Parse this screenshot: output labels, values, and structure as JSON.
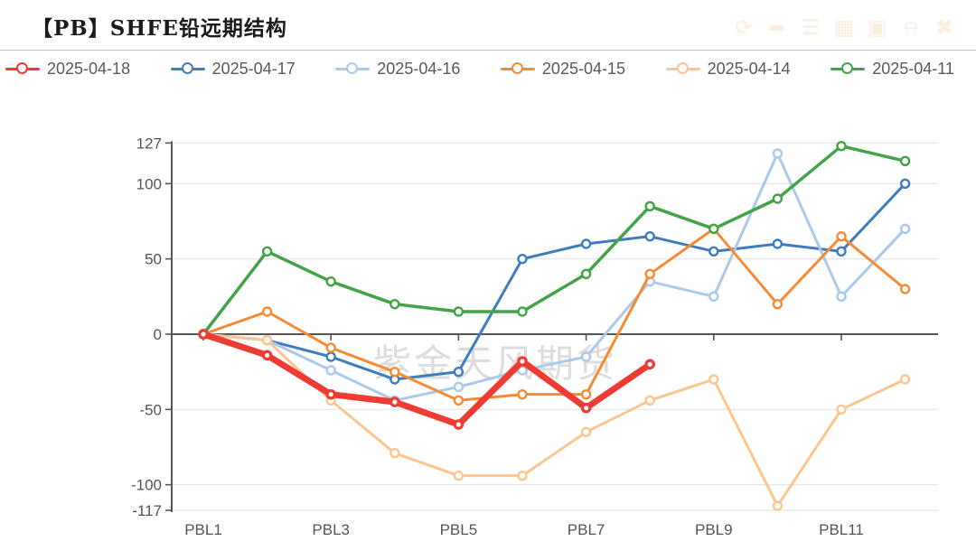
{
  "header": {
    "title": "【PB】SHFE铅远期结构"
  },
  "toolbar_icons": [
    {
      "name": "refresh-icon",
      "glyph": "⟳"
    },
    {
      "name": "share-icon",
      "glyph": "➦"
    },
    {
      "name": "list-icon",
      "glyph": "☰"
    },
    {
      "name": "table-icon",
      "glyph": "▦"
    },
    {
      "name": "image-icon",
      "glyph": "▣"
    },
    {
      "name": "bell-icon",
      "glyph": "⍾"
    },
    {
      "name": "close-icon",
      "glyph": "✖"
    }
  ],
  "watermark": "紫金天风期货",
  "colors": {
    "axis": "#555555",
    "grid": "#e4e4e4",
    "tick_label": "#555555",
    "legend_label": "#595959",
    "watermark": "#c3c3c3"
  },
  "chart_data": {
    "type": "line",
    "title": "【PB】SHFE铅远期结构",
    "categories": [
      "PBL1",
      "PBL2",
      "PBL3",
      "PBL4",
      "PBL5",
      "PBL6",
      "PBL7",
      "PBL8",
      "PBL9",
      "PBL10",
      "PBL11",
      "PBL12"
    ],
    "x_tick_labels": [
      "PBL1",
      "PBL3",
      "PBL5",
      "PBL7",
      "PBL9",
      "PBL11"
    ],
    "yticks": [
      127,
      100,
      50,
      0,
      -50,
      -100,
      -117
    ],
    "ylim": [
      -117,
      127
    ],
    "grid": true,
    "legend_position": "top",
    "series": [
      {
        "name": "2025-04-18",
        "color": "#ee3b33",
        "line_width": 7,
        "values": [
          0,
          -14,
          -40,
          -45,
          -60,
          -18,
          -49,
          -20
        ]
      },
      {
        "name": "2025-04-17",
        "color": "#3e7dbd",
        "line_width": 3,
        "values": [
          0,
          -4,
          -15,
          -30,
          -25,
          50,
          60,
          65,
          55,
          60,
          55,
          100
        ]
      },
      {
        "name": "2025-04-16",
        "color": "#abc9ea",
        "line_width": 3,
        "values": [
          0,
          -4,
          -24,
          -44,
          -35,
          -24,
          -15,
          35,
          25,
          120,
          25,
          70
        ]
      },
      {
        "name": "2025-04-15",
        "color": "#f78b34",
        "line_width": 3,
        "values": [
          0,
          15,
          -9,
          -25,
          -44,
          -40,
          -40,
          40,
          70,
          20,
          65,
          30
        ]
      },
      {
        "name": "2025-04-14",
        "color": "#fbc690",
        "line_width": 3,
        "values": [
          0,
          -4,
          -44,
          -79,
          -94,
          -94,
          -65,
          -44,
          -30,
          -114,
          -50,
          -30
        ]
      },
      {
        "name": "2025-04-11",
        "color": "#42a447",
        "line_width": 3.5,
        "values": [
          0,
          55,
          35,
          20,
          15,
          15,
          40,
          85,
          70,
          90,
          125,
          115
        ]
      }
    ]
  }
}
